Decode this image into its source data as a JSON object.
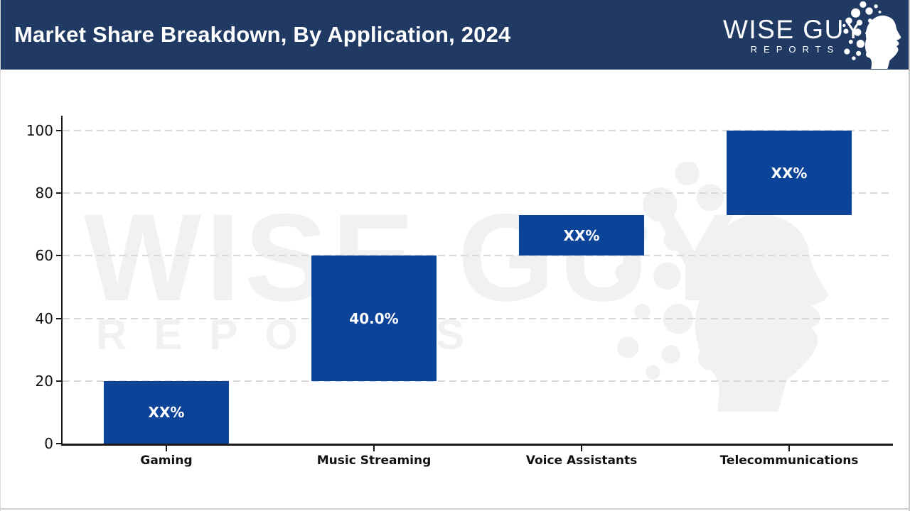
{
  "header": {
    "title": "Market Share Breakdown, By Application, 2024",
    "logo": {
      "line1": "WISE GUY",
      "line2": "REPORTS",
      "icon": "face-profile-dots-icon"
    }
  },
  "watermark": {
    "line1": "WISE GUY",
    "line2": "REPORTS",
    "icon": "face-profile-dots-icon"
  },
  "chart_data": {
    "type": "bar",
    "subtype": "waterfall",
    "title": "Market Share Breakdown, By Application, 2024",
    "categories": [
      "Gaming",
      "Music Streaming",
      "Voice Assistants",
      "Telecommunications"
    ],
    "segments": [
      {
        "category": "Gaming",
        "base": 0,
        "value": 20,
        "label": "XX%"
      },
      {
        "category": "Music Streaming",
        "base": 20,
        "value": 40,
        "label": "40.0%"
      },
      {
        "category": "Voice Assistants",
        "base": 60,
        "value": 13,
        "label": "XX%"
      },
      {
        "category": "Telecommunications",
        "base": 73,
        "value": 27,
        "label": "XX%"
      }
    ],
    "xlabel": "",
    "ylabel": "",
    "yticks": [
      0,
      20,
      40,
      60,
      80,
      100
    ],
    "ylim": [
      0,
      105
    ],
    "grid": "horizontal-dashed",
    "legend": "none"
  },
  "colors": {
    "header_bg": "#203A64",
    "bar": "#0B4399",
    "bar_label": "#FFFFFF",
    "watermark": "#F0F1F3",
    "grid": "#D8D8D8",
    "axis": "#1A1A1A",
    "title_text": "#FFFFFF"
  }
}
